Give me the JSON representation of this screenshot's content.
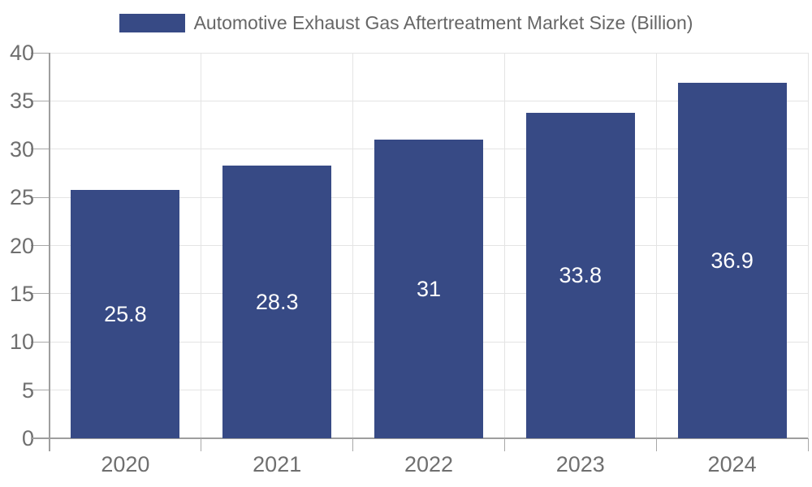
{
  "colors": {
    "bar": "#374a85",
    "grid": "#e4e4e4",
    "axis": "#9e9e9e",
    "tick": "#a8a8a8",
    "tick_label": "#6f6f6f",
    "legend_text": "#666666",
    "value_label": "#ffffff",
    "background": "#ffffff"
  },
  "chart_data": {
    "type": "bar",
    "legend": "Automotive Exhaust Gas Aftertreatment Market Size (Billion)",
    "categories": [
      "2020",
      "2021",
      "2022",
      "2023",
      "2024"
    ],
    "values": [
      25.8,
      28.3,
      31,
      33.8,
      36.9
    ],
    "value_labels": [
      "25.8",
      "28.3",
      "31",
      "33.8",
      "36.9"
    ],
    "ylim": [
      0,
      40
    ],
    "yticks": [
      0,
      5,
      10,
      15,
      20,
      25,
      30,
      35,
      40
    ],
    "ytick_labels": [
      "0",
      "5",
      "10",
      "15",
      "20",
      "25",
      "30",
      "35",
      "40"
    ],
    "grid": true,
    "legend_position": "top-center"
  }
}
